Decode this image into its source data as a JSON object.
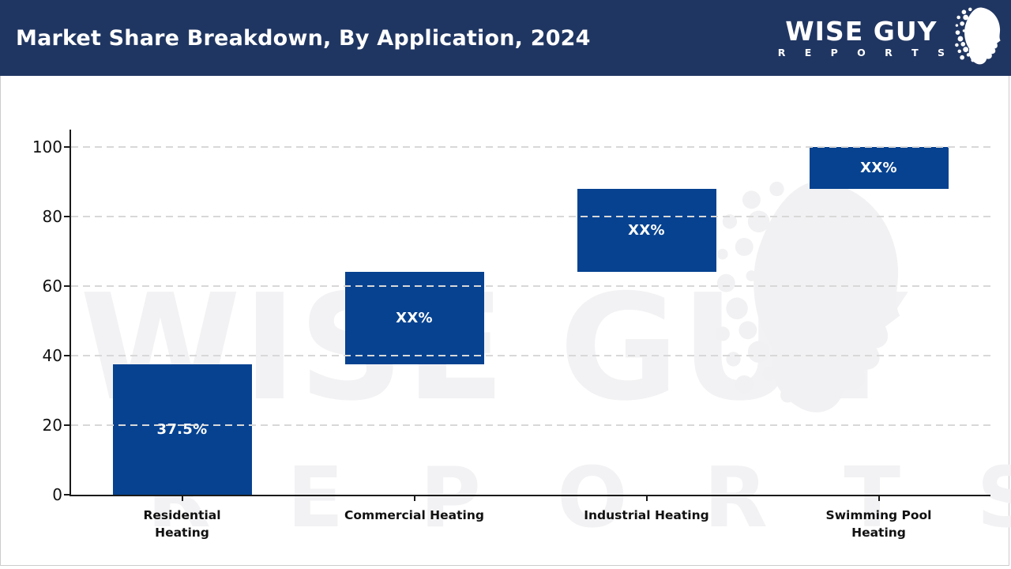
{
  "header": {
    "title": "Market Share Breakdown, By Application, 2024",
    "logo_line1": "WISE GUY",
    "logo_line2": "R E P O R T S"
  },
  "watermark": {
    "line1": "WISE GUY",
    "line2": "R E P O R T S"
  },
  "colors": {
    "header_bg": "#203662",
    "bar": "#064290",
    "bar_label": "#ffffff",
    "grid": "#d8d8d8",
    "axis": "#1a1a1a",
    "tick_label": "#111111",
    "watermark": "#f2f2f4",
    "frame_border": "#cccccc"
  },
  "chart_data": {
    "type": "bar",
    "variant": "floating-waterfall",
    "title": "Market Share Breakdown, By Application, 2024",
    "categories": [
      "Residential Heating",
      "Commercial Heating",
      "Industrial Heating",
      "Swimming Pool Heating"
    ],
    "category_display": [
      "Residential\nHeating",
      "Commercial Heating",
      "Industrial Heating",
      "Swimming Pool\nHeating"
    ],
    "segments": [
      {
        "category": "Residential Heating",
        "start": 0,
        "end": 37.5,
        "label": "37.5%"
      },
      {
        "category": "Commercial Heating",
        "start": 37.5,
        "end": 64,
        "label": "XX%"
      },
      {
        "category": "Industrial Heating",
        "start": 64,
        "end": 88,
        "label": "XX%"
      },
      {
        "category": "Swimming Pool Heating",
        "start": 88,
        "end": 100,
        "label": "XX%"
      }
    ],
    "xlabel": "",
    "ylabel": "",
    "yticks": [
      0,
      20,
      40,
      60,
      80,
      100
    ],
    "ylim": [
      0,
      105
    ],
    "grid": "horizontal-dashed",
    "legend": false,
    "bar_color": "#064290"
  }
}
